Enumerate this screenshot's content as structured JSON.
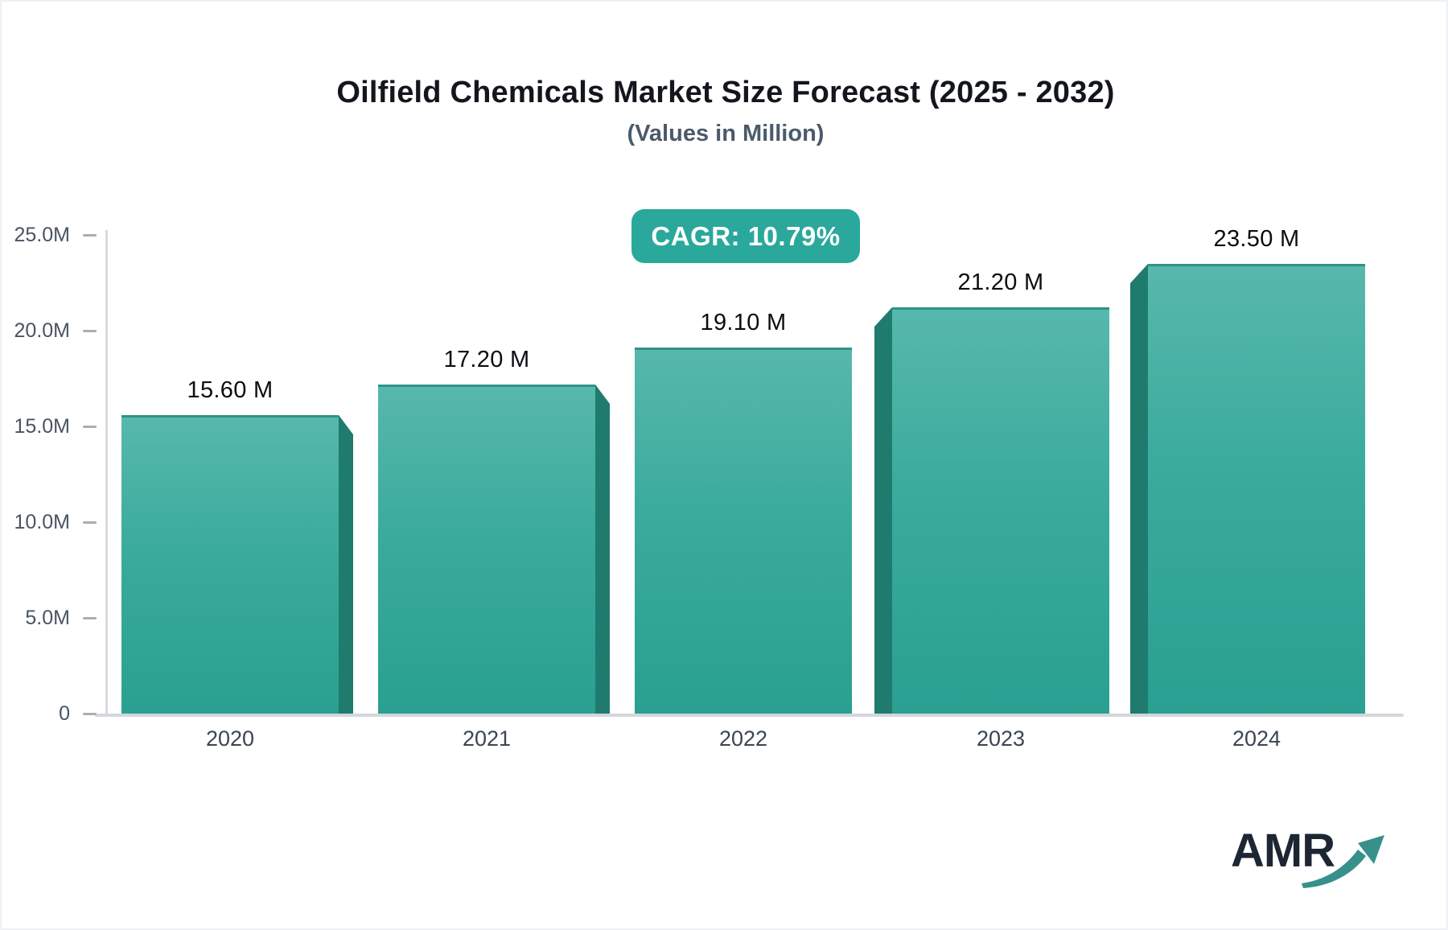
{
  "page": {
    "title": "Oilfield Chemicals Market Size Forecast (2025 - 2032)",
    "subtitle": "(Values in Million)",
    "cagr_badge": "CAGR: 10.79%"
  },
  "chart_data": {
    "type": "bar",
    "title": "Oilfield Chemicals Market Size Forecast (2025 - 2032)",
    "subtitle": "(Values in Million)",
    "unit": "Million",
    "cagr_label": "CAGR: 10.79%",
    "cagr_value_pct": 10.79,
    "categories": [
      "2020",
      "2021",
      "2022",
      "2023",
      "2024"
    ],
    "values": [
      15.6,
      17.2,
      19.1,
      21.2,
      23.5
    ],
    "value_labels": [
      "15.60 M",
      "17.20 M",
      "19.10 M",
      "21.20 M",
      "23.50 M"
    ],
    "y_tick_values": [
      0,
      5,
      10,
      15,
      20,
      25
    ],
    "y_tick_labels": [
      "0",
      "5.0M",
      "10.0M",
      "15.0M",
      "20.0M",
      "25.0M"
    ],
    "ylim": [
      0,
      25
    ],
    "grid": "off",
    "legend": "none",
    "bar_color_top": "#57b8ac",
    "bar_color_bottom": "#29a091",
    "bar_side_color": "#1f7b6e",
    "badge_color": "#2aa89b",
    "axis_color": "#d3d7dc"
  },
  "logo": {
    "text": "AMR",
    "arrow_color": "#37918a"
  }
}
